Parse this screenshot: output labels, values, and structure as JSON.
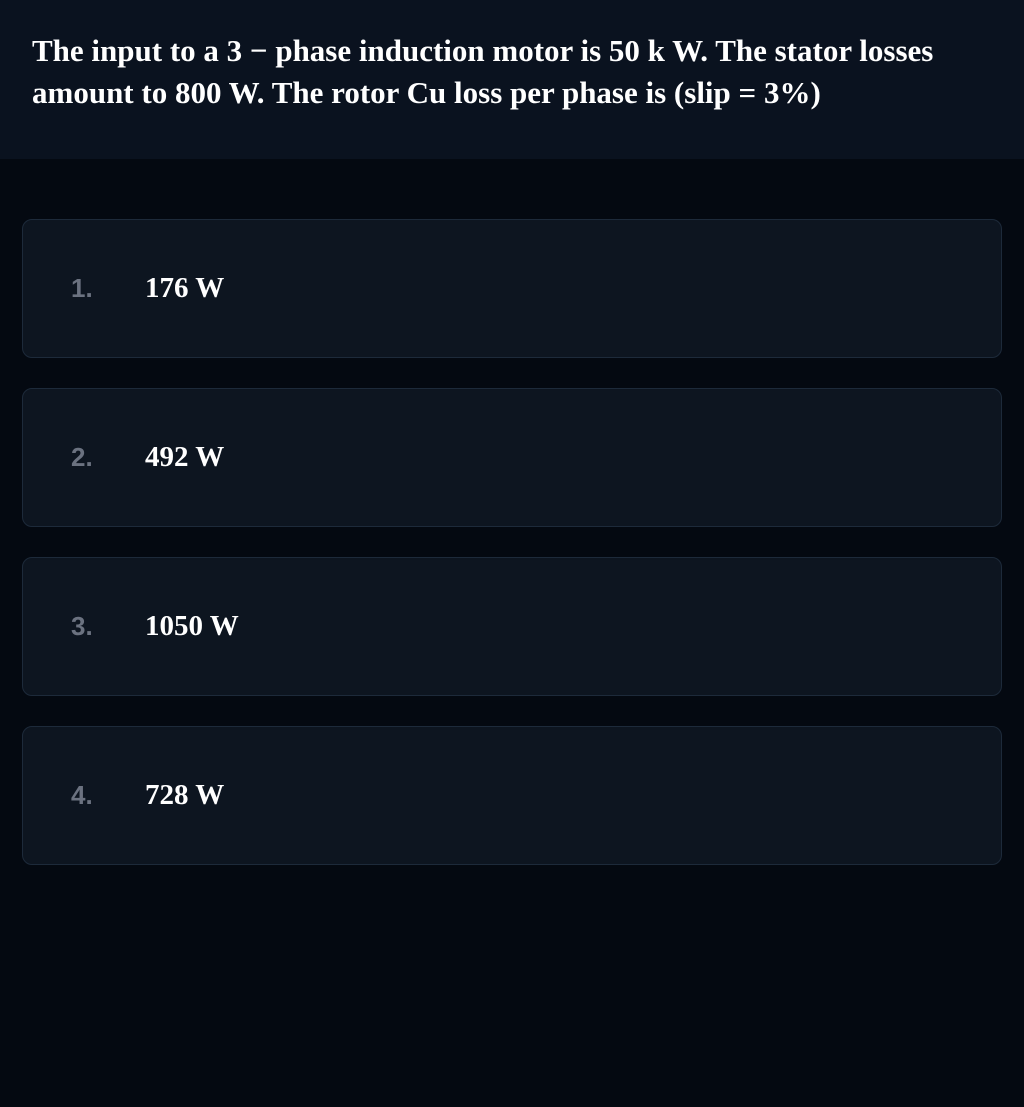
{
  "question": {
    "text": "The input to a 3 − phase induction motor is 50 k W. The stator losses amount to 800 W. The rotor Cu loss per phase is (slip = 3%)"
  },
  "options": [
    {
      "number": "1.",
      "text": "176 W"
    },
    {
      "number": "2.",
      "text": "492 W"
    },
    {
      "number": "3.",
      "text": "1050 W"
    },
    {
      "number": "4.",
      "text": "728 W"
    }
  ],
  "colors": {
    "background": "#040911",
    "question_bg": "#0a121f",
    "card_bg": "#0d1520",
    "card_border": "#1d2a3a",
    "text_primary": "#ffffff",
    "text_muted": "#6b7280"
  }
}
